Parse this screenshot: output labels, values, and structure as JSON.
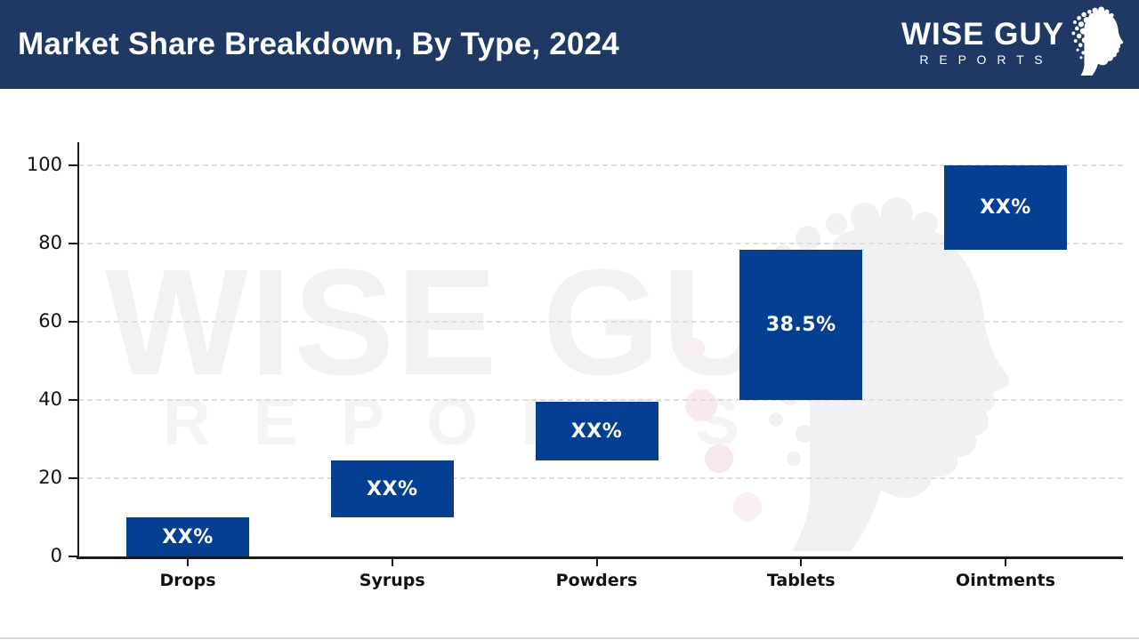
{
  "header": {
    "title": "Market Share Breakdown, By Type, 2024",
    "logo": {
      "wordmark": "WISE GUY",
      "subtitle": "R E P O R T S",
      "icon": "wiseguy-head-icon"
    }
  },
  "watermark": {
    "wordmark": "WISE GUY",
    "subtitle": "R E P O R T S",
    "icon": "wiseguy-head-watermark-icon"
  },
  "colors": {
    "header_bg": "#1f3864",
    "bar_blue": "#053f92",
    "bar_label": "#ffffff",
    "grid_gray": "#dedede",
    "axis_black": "#1a1a1a",
    "watermark_gray": "#f2f2f4",
    "bottom_rule_gray": "#d8d8d8"
  },
  "chart_data": {
    "type": "bar",
    "subtype": "waterfall",
    "title": "Market Share Breakdown, By Type, 2024",
    "categories": [
      "Drops",
      "Syrups",
      "Powders",
      "Tablets",
      "Ointments"
    ],
    "bars": [
      {
        "category": "Drops",
        "start": 0,
        "end": 10,
        "label": "XX%",
        "masked": true
      },
      {
        "category": "Syrups",
        "start": 10,
        "end": 24.5,
        "label": "XX%",
        "masked": true
      },
      {
        "category": "Powders",
        "start": 24.5,
        "end": 39.5,
        "label": "XX%",
        "masked": true
      },
      {
        "category": "Tablets",
        "start": 40,
        "end": 78.5,
        "label": "38.5%",
        "masked": false,
        "value": 38.5
      },
      {
        "category": "Ointments",
        "start": 78.5,
        "end": 100,
        "label": "XX%",
        "masked": true
      }
    ],
    "yticks": [
      0,
      20,
      40,
      60,
      80,
      100
    ],
    "ylim": [
      0,
      105
    ],
    "xlabel": "",
    "ylabel": "",
    "grid": "horizontal-dashed",
    "legend": "none",
    "bar_color": "#053f92",
    "label_color": "#ffffff"
  }
}
